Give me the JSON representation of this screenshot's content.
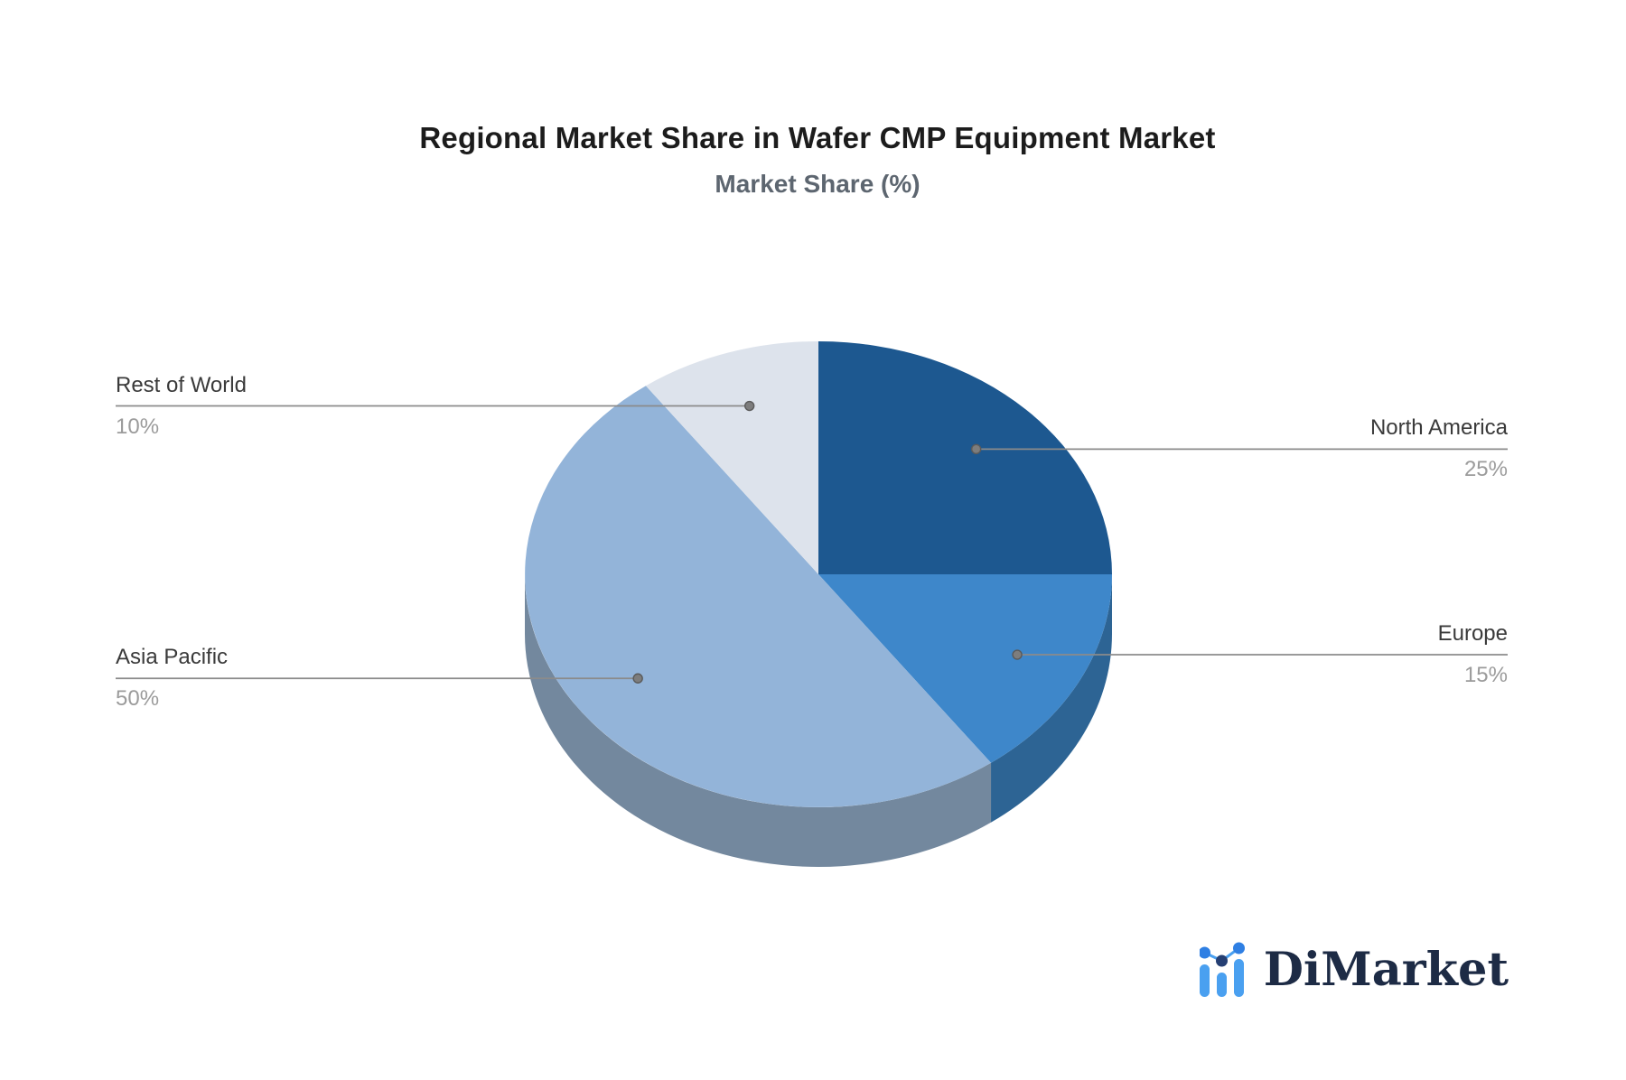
{
  "chart_data": {
    "type": "pie",
    "title": "Regional Market Share in Wafer CMP Equipment Market",
    "subtitle": "Market Share (%)",
    "legend": "none",
    "label_style": "outside-callouts",
    "effect": "3d-depth",
    "slices": [
      {
        "label": "North America",
        "value": 25,
        "pct_label": "25%",
        "color": "#1d5890",
        "side_color": "#16436e",
        "callout_side": "right"
      },
      {
        "label": "Europe",
        "value": 15,
        "pct_label": "15%",
        "color": "#3e87ca",
        "side_color": "#2d6494",
        "callout_side": "right"
      },
      {
        "label": "Asia Pacific",
        "value": 50,
        "pct_label": "50%",
        "color": "#93b4d9",
        "side_color": "#73889e",
        "callout_side": "left"
      },
      {
        "label": "Rest of World",
        "value": 10,
        "pct_label": "10%",
        "color": "#dde3ec",
        "side_color": "#aab4c2",
        "callout_side": "left"
      }
    ],
    "callout_line_color": "#8b8b8b",
    "callout_dot_color": "#7d7d7d"
  },
  "branding": {
    "logo_text": "DiMarket",
    "logo_icon": "bar-line-chart-icon",
    "logo_text_color": "#1d2b45",
    "logo_bar_color": "#4aa0f0",
    "logo_dot_color": "#2f7fe3",
    "logo_mid_dot_color": "#253f73"
  }
}
